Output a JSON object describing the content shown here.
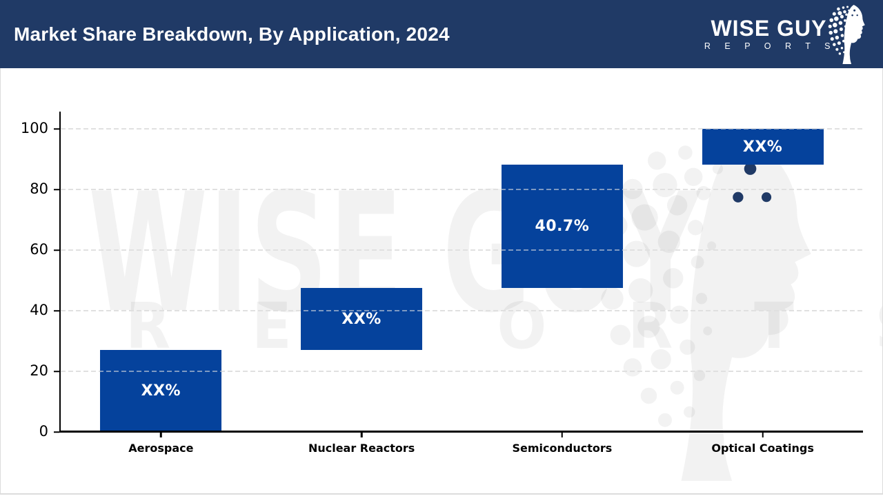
{
  "header": {
    "title": "Market Share Breakdown, By Application, 2024",
    "logo": {
      "line1": "WISE GUY",
      "line2": "R E P O R T S"
    }
  },
  "watermark": {
    "line1": "WISE GUY",
    "line2": "R E P O R T S"
  },
  "colors": {
    "header_bg": "#203a66",
    "bar": "#05429c",
    "grid": "#dedede",
    "axis": "#000000",
    "bar_label_text": "#ffffff",
    "title_text": "#ffffff",
    "frame_border": "#dcdcdc"
  },
  "chart_data": {
    "type": "bar",
    "subtype": "waterfall-stacked-percentage",
    "title": "Market Share Breakdown, By Application, 2024",
    "xlabel": "",
    "ylabel": "",
    "categories": [
      "Aerospace",
      "Nuclear Reactors",
      "Semiconductors",
      "Optical Coatings"
    ],
    "series": [
      {
        "name": "Market Share (%)",
        "segments": [
          {
            "category": "Aerospace",
            "start": 0,
            "end": 27,
            "label": "XX%"
          },
          {
            "category": "Nuclear Reactors",
            "start": 27,
            "end": 47.5,
            "label": "XX%"
          },
          {
            "category": "Semiconductors",
            "start": 47.5,
            "end": 88.2,
            "label": "40.7%"
          },
          {
            "category": "Optical Coatings",
            "start": 88.2,
            "end": 100,
            "label": "XX%"
          }
        ]
      }
    ],
    "ylim": [
      0,
      105.5
    ],
    "yticks": [
      0,
      20,
      40,
      60,
      80,
      100
    ],
    "grid": "horizontal-dashed-over-bars",
    "legend": "none"
  }
}
